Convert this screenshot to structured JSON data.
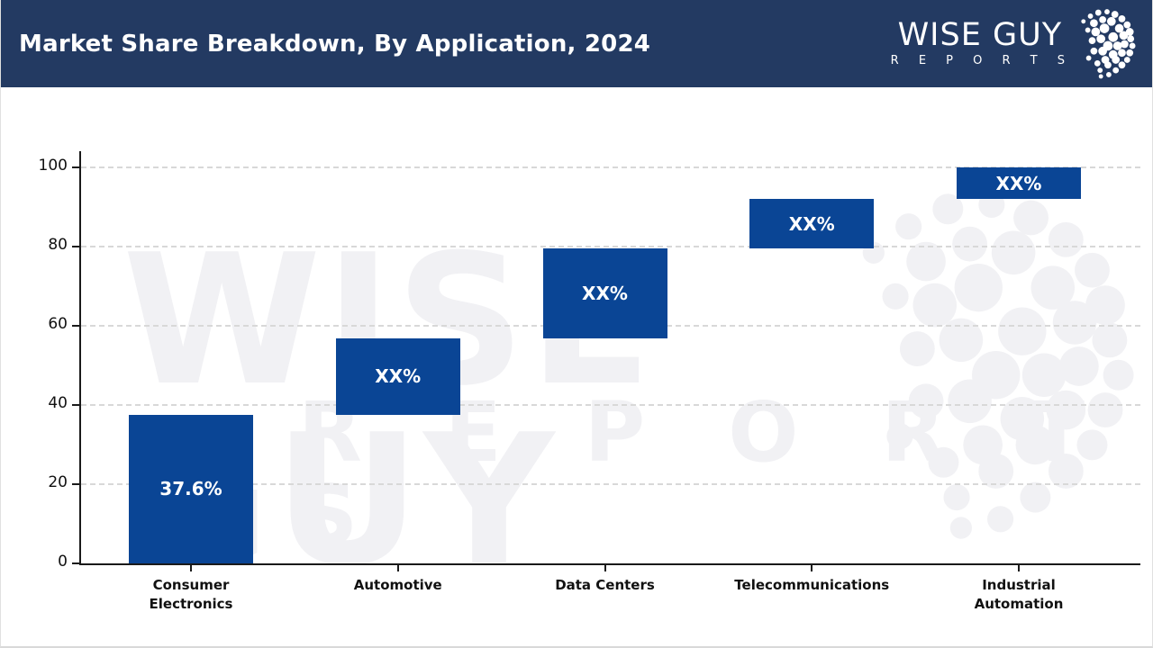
{
  "header": {
    "title": "Market Share Breakdown, By Application, 2024",
    "logo": {
      "line1": "WISE GUY",
      "line2": "R E P O R T S"
    }
  },
  "watermark": {
    "line1": "WISE GUY",
    "line2": "R E P O R T S"
  },
  "colors": {
    "header_bg": "#233A62",
    "bar": "#0A4595",
    "axis": "#1a1a1a",
    "grid": "#d8d8d8",
    "tick_text": "#111111",
    "bar_label_text": "#ffffff",
    "watermark": "#f1f1f4"
  },
  "chart_data": {
    "type": "bar",
    "subtype": "waterfall-floating-bars",
    "title": "Market Share Breakdown, By Application, 2024",
    "categories": [
      "Consumer\nElectronics",
      "Automotive",
      "Data Centers",
      "Telecommunications",
      "Industrial\nAutomation"
    ],
    "series": [
      {
        "name": "Market Share",
        "starts": [
          0,
          37.6,
          56.8,
          79.5,
          92.0
        ],
        "ends": [
          37.6,
          56.8,
          79.5,
          92.0,
          100.0
        ],
        "values": [
          37.6,
          19.2,
          22.7,
          12.5,
          8.0
        ]
      }
    ],
    "bar_labels": [
      "37.6%",
      "XX%",
      "XX%",
      "XX%",
      "XX%"
    ],
    "xlabel": "",
    "ylabel": "",
    "yticks": [
      0,
      20,
      40,
      60,
      80,
      100
    ],
    "ylim": [
      0,
      105
    ],
    "grid": "horizontal dashed",
    "legend": "none",
    "bar_color": "#0A4595",
    "label_color": "#ffffff"
  }
}
